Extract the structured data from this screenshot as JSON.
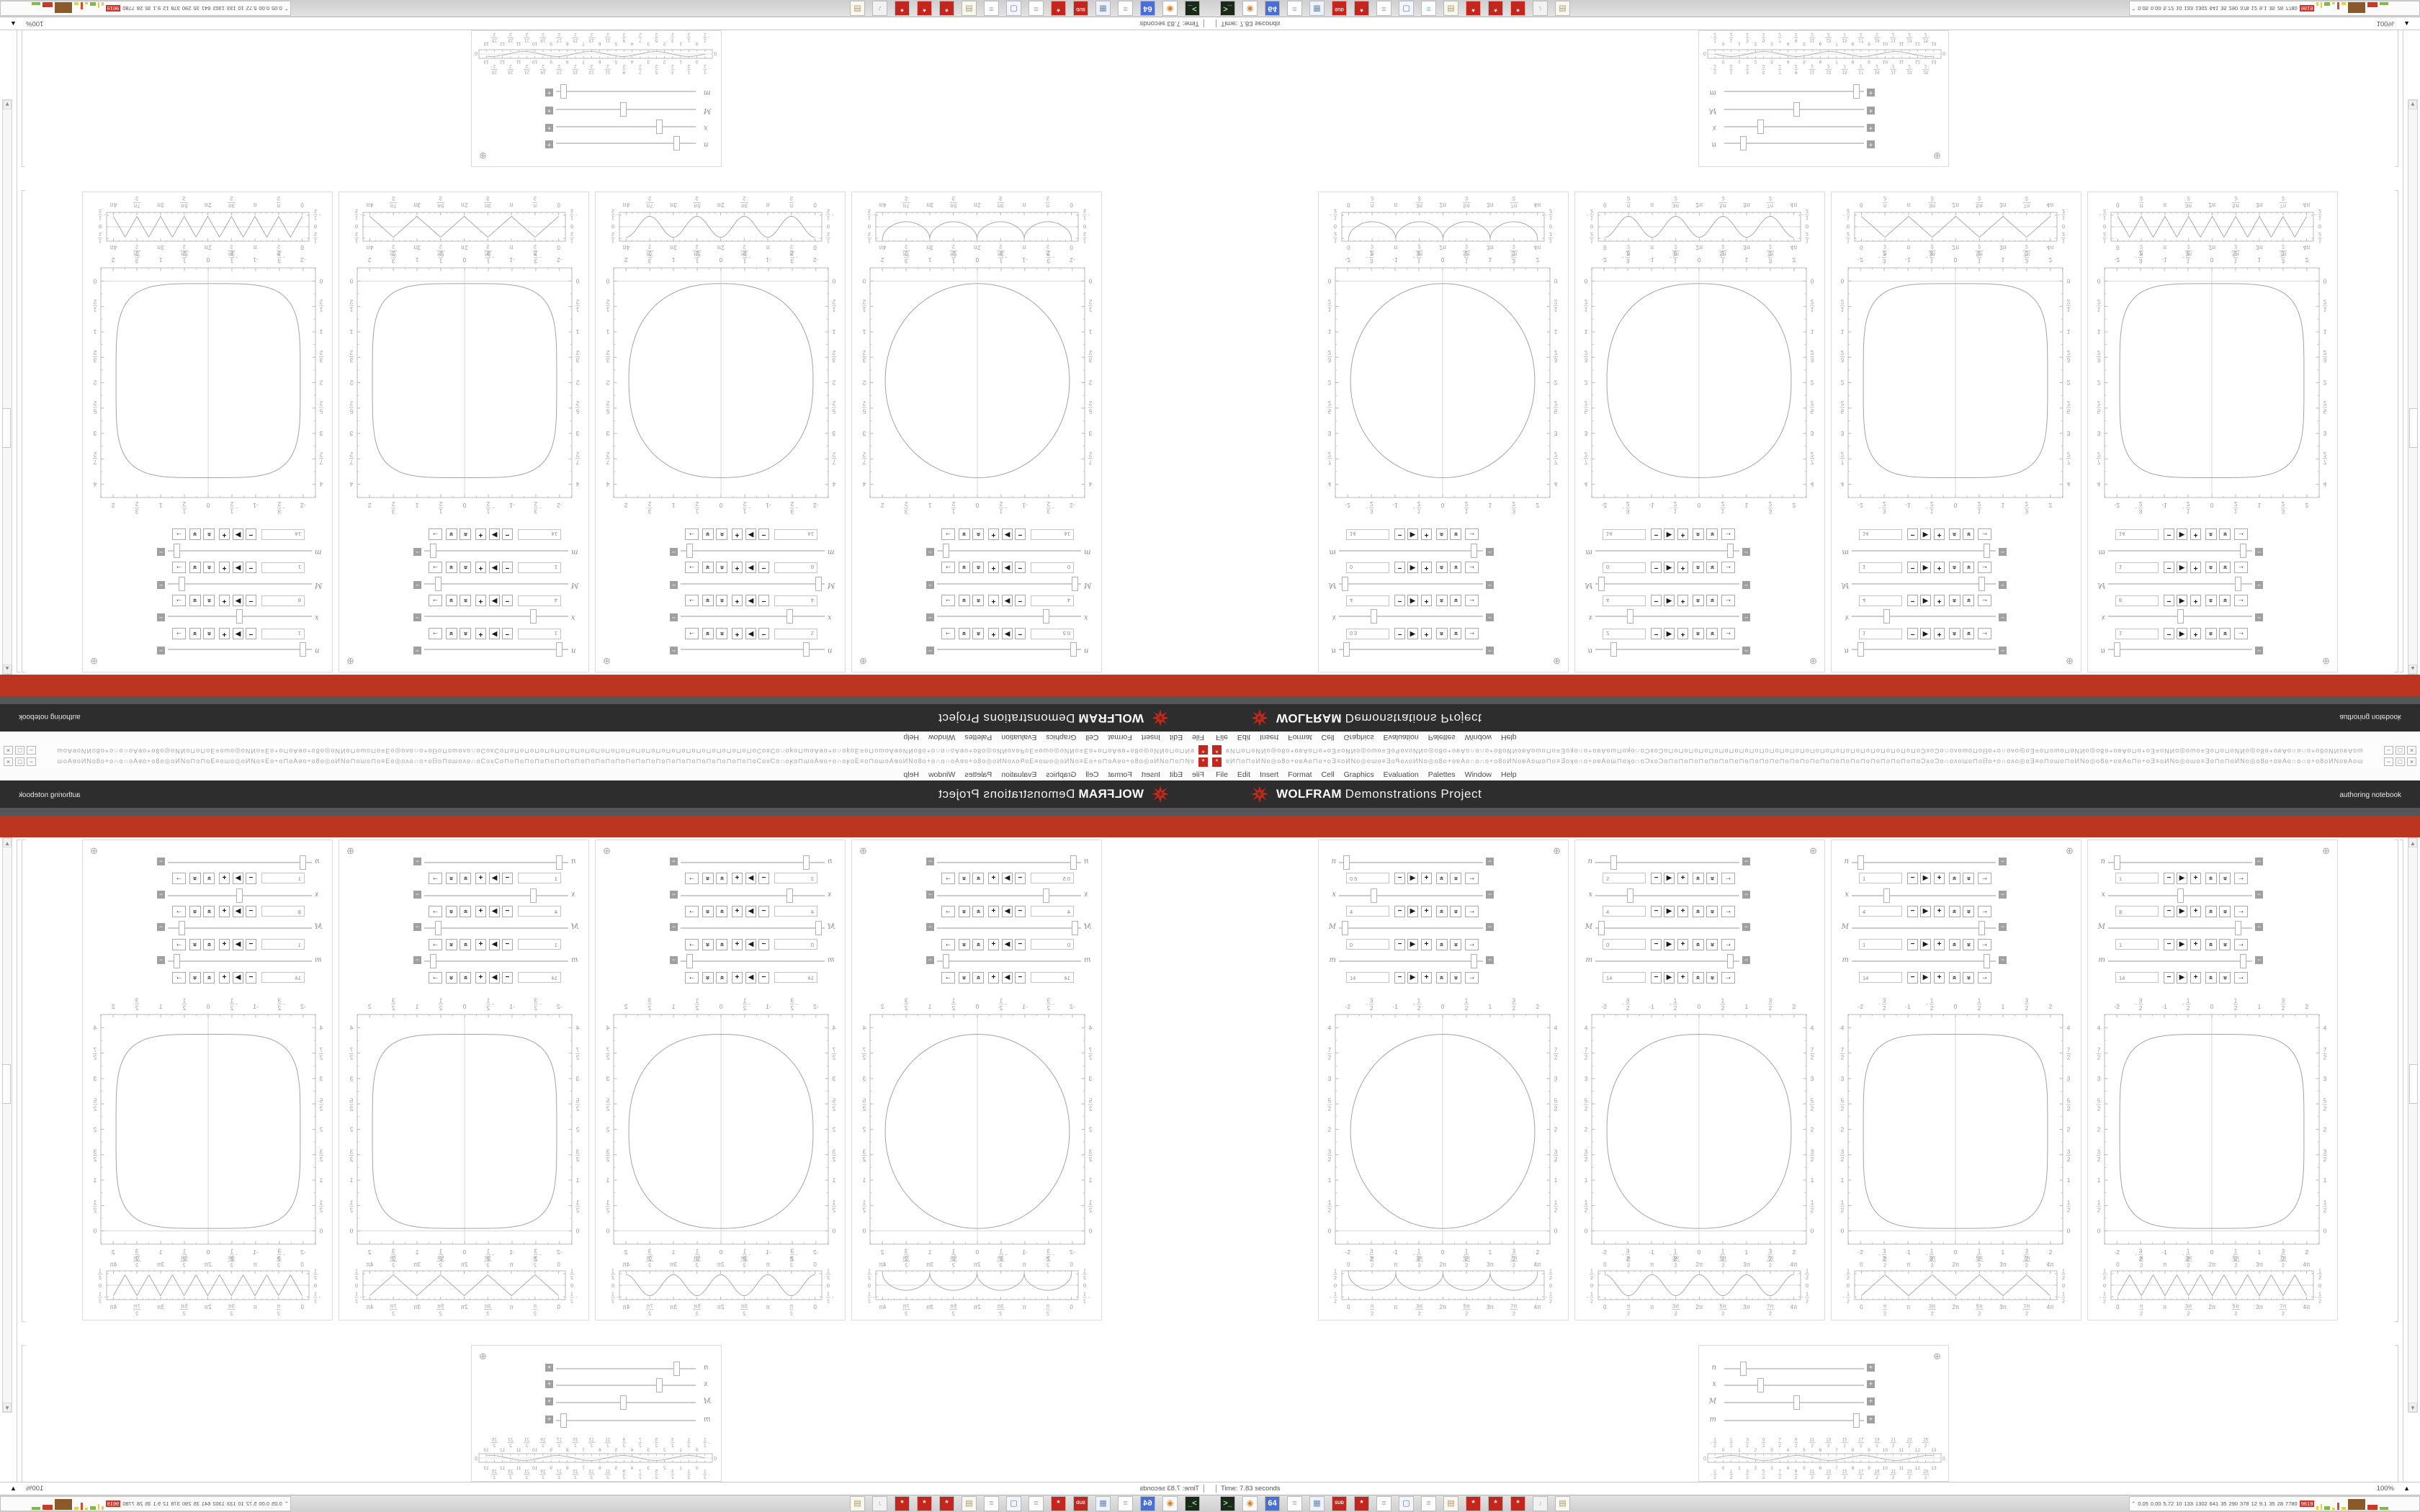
{
  "title_bar": {
    "garbled": "ɐИ⊓o⊓oИNo◎o8o+oɐAo⊓o+oƎ≡oИNo◎oɯo≡ƎoᑫoᴧoИNo◎o8o+oɐAo∩o∩o+o8oИNoɐAoɯo⊓o≡Ǝoʞo∩o+oɐAoɯ⊓oʞo∩oƆxoƆo⊓o⊓o⊓o⊓o⊓o⊓o⊓o⊓o⊓o⊓o⊓o⊓o⊓o⊓o⊓o⊓o⊓o⊓o⊓o⊓o⊓o⊓o⊓o⊓o⊓oƆxoƆo∩oᴧoɯo⊓oᗺo+o∩oᴧo◎oƎ≡o⊓oɯo⊓oИNo◎o8o+oɐAo⊓o+oƎ≡oИNo◎oɯo≡Ǝo⊓o⊓oИNo◎o8o+oɐAo∩o∩o+o8oИNoɐAoɯo⊓o≡Ǝoʞo∩o+oɐAoɯ⊓oʞo∩oƆxoƆo⊓o⊓o⊓o⊓o⊓o⊓o⊓o⊓o⊓o⊓o⊓o⊓o⊓o⊓o⊓",
    "buttons": [
      "−",
      "□",
      "×"
    ]
  },
  "menu_bar": {
    "items": [
      "File",
      "Edit",
      "Insert",
      "Format",
      "Cell",
      "Graphics",
      "Evaluation",
      "Palettes",
      "Window",
      "Help"
    ]
  },
  "banner": {
    "brand_bold": "WOLFRAM",
    "brand_rest": "Demonstrations Project",
    "right_link": "authoring notebook",
    "bar_color": "#2d2d2d",
    "strip_color": "#55555a",
    "red_color": "#bc3520"
  },
  "window_status": {
    "time_text": "Time: 7.83 seconds",
    "zoom_level": "100%",
    "resize_glyph": "▲"
  },
  "taskbar": {
    "launchers": [
      {
        "name": "terminal-icon",
        "glyph": ">_",
        "bg": "#1c281c",
        "fg": "#88ee88"
      },
      {
        "name": "firefox-icon",
        "glyph": "◉",
        "bg": "#ffffff",
        "fg": "#e07b2a"
      },
      {
        "name": "floppy-64-icon",
        "glyph": "64",
        "bg": "#4a6fd4",
        "fg": "#ffffff"
      },
      {
        "name": "notepad-icon",
        "glyph": "≡",
        "bg": "#fdfdfd",
        "fg": "#99aabb"
      },
      {
        "name": "calculator-icon",
        "glyph": "▦",
        "bg": "#eef2fa",
        "fg": "#6688aa"
      },
      {
        "name": "media-player-icon",
        "glyph": "SUD",
        "bg": "#c4251c",
        "fg": "#ffffff"
      },
      {
        "name": "mathematica-spikey-icon",
        "glyph": "*",
        "bg": "#c4251c",
        "fg": "#ffffff"
      },
      {
        "name": "notepad-icon",
        "glyph": "≡",
        "bg": "#fdfdfd",
        "fg": "#99aabb"
      },
      {
        "name": "window-switcher-icon",
        "glyph": "▢",
        "bg": "#f4f6ff",
        "fg": "#5577cc"
      },
      {
        "name": "notepad-icon",
        "glyph": "≡",
        "bg": "#fdfdfd",
        "fg": "#99aabb"
      },
      {
        "name": "script-icon",
        "glyph": "▤",
        "bg": "#f8f8f0",
        "fg": "#aa9966"
      },
      {
        "name": "mathematica-spikey-icon",
        "glyph": "*",
        "bg": "#c4251c",
        "fg": "#ffffff"
      },
      {
        "name": "mathematica-spikey-icon",
        "glyph": "*",
        "bg": "#c4251c",
        "fg": "#ffffff"
      },
      {
        "name": "mathematica-spikey-icon",
        "glyph": "*",
        "bg": "#c4251c",
        "fg": "#ffffff"
      },
      {
        "name": "volume-muted-icon",
        "glyph": "♪",
        "bg": "#f2f2f2",
        "fg": "#bbbbbb"
      },
      {
        "name": "script-icon",
        "glyph": "▤",
        "bg": "#f8f8f0",
        "fg": "#aa9966"
      }
    ],
    "monitor": {
      "chevron": "⌃",
      "values": [
        "0.05",
        "0.00",
        "5.72",
        "10",
        "133",
        "1302",
        "641",
        "35",
        "290",
        "378",
        "12",
        "9.1",
        "35",
        "28",
        "7780"
      ],
      "highlight_value": "9619",
      "sparkline": [
        {
          "c": "#e3cf44",
          "w": 3,
          "h": 5
        },
        {
          "c": "#e3cf44",
          "w": 2,
          "h": 8
        },
        {
          "c": "#7fba45",
          "w": 8,
          "h": 5
        },
        {
          "c": "#e3cf44",
          "w": 4,
          "h": 3
        },
        {
          "c": "#d24a29",
          "w": 3,
          "h": 10
        },
        {
          "c": "#e3cf44",
          "w": 6,
          "h": 4
        },
        {
          "c": "#8a5a2b",
          "w": 24,
          "h": 15
        },
        {
          "c": "#c93a26",
          "w": 14,
          "h": 7
        },
        {
          "c": "#7fba45",
          "w": 12,
          "h": 4
        }
      ]
    }
  },
  "panels": {
    "slider_labels": [
      "n",
      "x",
      "M",
      "m"
    ],
    "stepper_buttons": [
      "−",
      "▶",
      "+",
      "»",
      "»",
      "→"
    ],
    "expander_open": "−",
    "expander_closed": "+",
    "popup_glyph": "⊕",
    "items": [
      {
        "name": "manipulate-1",
        "values": [
          "0.5",
          "4",
          "0",
          "14"
        ],
        "positions": [
          0.03,
          0.23,
          0.02,
          0.96
        ],
        "wave": "cusp",
        "curve_exponent": 2.05
      },
      {
        "name": "manipulate-2",
        "values": [
          "2",
          "4",
          "0",
          "14"
        ],
        "positions": [
          0.11,
          0.23,
          0.02,
          0.96
        ],
        "wave": "scallop",
        "curve_exponent": 2.35
      },
      {
        "name": "manipulate-3",
        "values": [
          "1",
          "4",
          "1",
          "14"
        ],
        "positions": [
          0.04,
          0.23,
          0.92,
          0.96
        ],
        "wave": "triangle-4",
        "curve_exponent": 4.2
      },
      {
        "name": "manipulate-4",
        "values": [
          "1",
          "8",
          "1",
          "14"
        ],
        "positions": [
          0.04,
          0.5,
          0.92,
          0.96
        ],
        "wave": "triangle-8",
        "curve_exponent": 4.2
      },
      {
        "name": "manipulate-5",
        "positions": [
          0.12,
          0.25,
          0.52,
          0.97
        ],
        "wave": "sine-long",
        "collapsed": true
      }
    ]
  },
  "chart_data": [
    {
      "type": "line",
      "id": "closed-curve-plot",
      "xticks": [
        "-2",
        "-3/2",
        "-1",
        "-1/2",
        "0",
        "1/2",
        "1",
        "3/2",
        "2"
      ],
      "yticks": [
        "0",
        "1/2",
        "1",
        "3/2",
        "2",
        "5/2",
        "3",
        "7/2",
        "4"
      ],
      "xlim": [
        -2.26,
        2.26
      ],
      "ylim": [
        -0.26,
        4.26
      ],
      "grid": false,
      "series": [
        {
          "name": "panel-1 closed curve",
          "desc": "near-circle superellipse, center (0,2), half-width 1.93, half-height 1.9, exponent 2.05"
        },
        {
          "name": "panel-2 closed curve",
          "desc": "rounded blob superellipse, center (0,2), half-width 1.95, half-height 1.93, exponent 2.35"
        },
        {
          "name": "panel-3 closed curve",
          "desc": "rounded square superellipse, center (0,2), half-width 1.95, half-height 1.93, exponent 4.2"
        },
        {
          "name": "panel-4 closed curve",
          "desc": "rounded square superellipse, center (0,2), half-width 1.95, half-height 1.93, exponent 4.2"
        }
      ]
    },
    {
      "type": "line",
      "id": "wave-strip-plot",
      "xticks": [
        "0",
        "π/2",
        "π",
        "3π/2",
        "2π",
        "5π/2",
        "3π",
        "7π/2",
        "4π"
      ],
      "yticks": [
        "1/2",
        "0",
        "-1/2"
      ],
      "xlim_units_of_pi": [
        0,
        4
      ],
      "ylim": [
        -0.62,
        0.62
      ],
      "series": [
        {
          "name": "panel-1 wave",
          "desc": "cusp wave, cusps up to 1/2 at multiples of π"
        },
        {
          "name": "panel-2 wave",
          "desc": "smooth scallop wave, period π, amplitude 0.45"
        },
        {
          "name": "panel-3 wave",
          "desc": "triangle wave, period π, amplitude 0.45"
        },
        {
          "name": "panel-4 wave",
          "desc": "triangle wave, period π/2, amplitude 0.45"
        }
      ]
    },
    {
      "type": "line",
      "id": "long-strip-plot",
      "xticks": [
        "-1/2",
        "0",
        "1/2",
        "1",
        "3/2",
        "2",
        "5/2",
        "3",
        "7/2",
        "4",
        "9/2",
        "5",
        "11/2",
        "6",
        "13/2",
        "7",
        "15/2",
        "8",
        "17/2",
        "9",
        "19/2",
        "10",
        "21/2",
        "11",
        "23/2",
        "12",
        "25/2",
        "13"
      ],
      "yticks": [
        "0"
      ],
      "xlim": [
        -0.95,
        13.45
      ],
      "series": [
        {
          "name": "panel-5 wave",
          "desc": "low-amplitude sine along 0..13, ~3.5 periods"
        }
      ]
    }
  ]
}
